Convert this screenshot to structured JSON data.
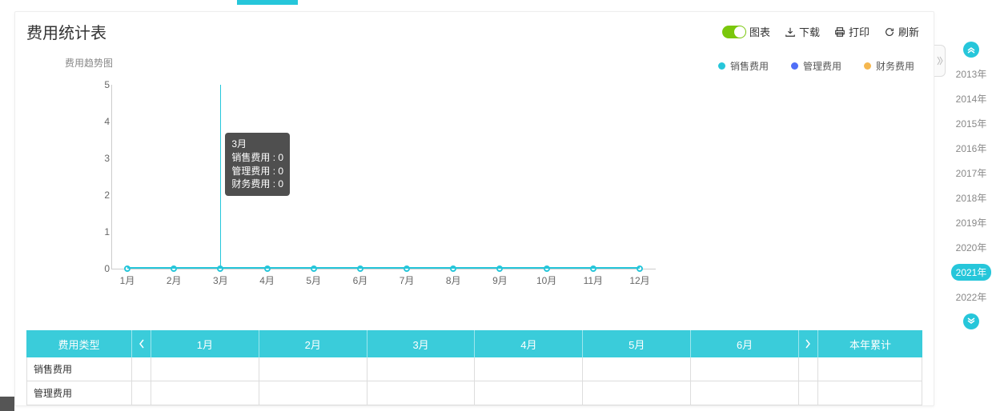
{
  "header": {
    "title": "费用统计表",
    "toggle_label": "图表",
    "download_label": "下载",
    "print_label": "打印",
    "refresh_label": "刷新"
  },
  "chart": {
    "type": "line",
    "title": "费用趋势图",
    "legend": [
      {
        "label": "销售费用",
        "color": "#26c6da"
      },
      {
        "label": "管理费用",
        "color": "#4f6ef7"
      },
      {
        "label": "财务费用",
        "color": "#f5b74f"
      }
    ],
    "x_categories": [
      "1月",
      "2月",
      "3月",
      "4月",
      "5月",
      "6月",
      "7月",
      "8月",
      "9月",
      "10月",
      "11月",
      "12月"
    ],
    "y_ticks": [
      0,
      1,
      2,
      3,
      4,
      5
    ],
    "ylim": [
      0,
      5
    ],
    "series": {
      "销售费用": [
        0,
        0,
        0,
        0,
        0,
        0,
        0,
        0,
        0,
        0,
        0,
        0
      ],
      "管理费用": [
        0,
        0,
        0,
        0,
        0,
        0,
        0,
        0,
        0,
        0,
        0,
        0
      ],
      "财务费用": [
        0,
        0,
        0,
        0,
        0,
        0,
        0,
        0,
        0,
        0,
        0,
        0
      ]
    },
    "hover_index": 2,
    "tooltip": {
      "title": "3月",
      "rows": [
        {
          "label": "销售费用",
          "value": "0"
        },
        {
          "label": "管理费用",
          "value": "0"
        },
        {
          "label": "财务费用",
          "value": "0"
        }
      ]
    },
    "line_color": "#26c6da",
    "point_fill": "#ffffff",
    "point_stroke": "#26c6da",
    "axis_color": "#cccccc",
    "background_color": "#ffffff"
  },
  "table": {
    "type_header": "费用类型",
    "month_headers": [
      "1月",
      "2月",
      "3月",
      "4月",
      "5月",
      "6月"
    ],
    "total_header": "本年累计",
    "rows": [
      {
        "label": "销售费用"
      },
      {
        "label": "管理费用"
      }
    ],
    "header_bg": "#3accda"
  },
  "year_rail": {
    "years": [
      "2013年",
      "2014年",
      "2015年",
      "2016年",
      "2017年",
      "2018年",
      "2019年",
      "2020年",
      "2021年",
      "2022年"
    ],
    "selected": "2021年"
  }
}
